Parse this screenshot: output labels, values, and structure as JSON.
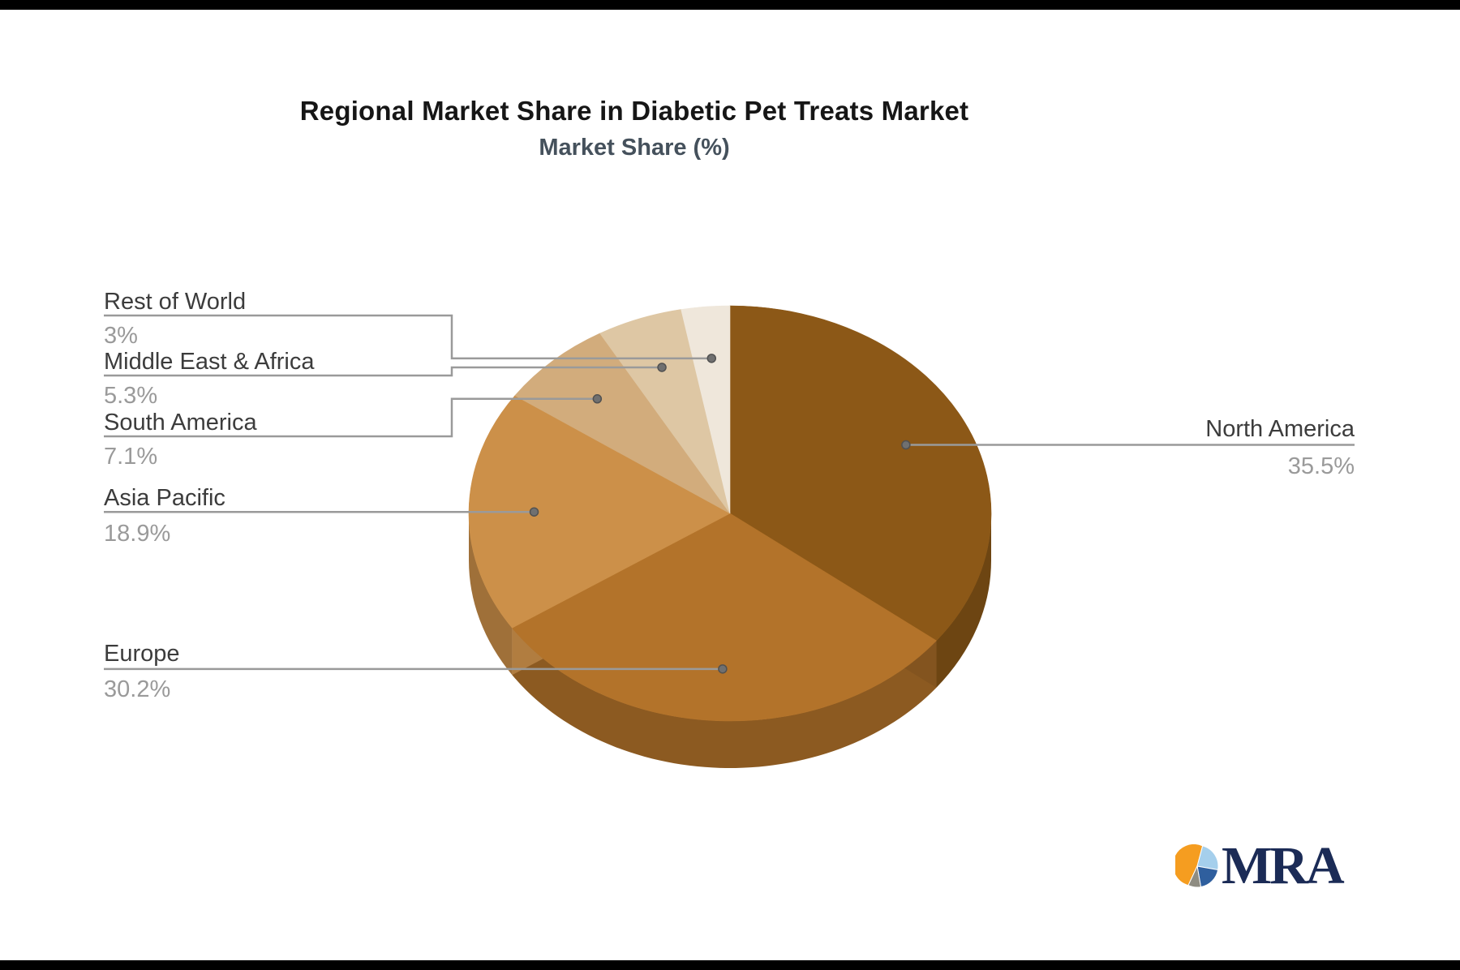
{
  "page": {
    "background": "#ffffff",
    "letterbox_color": "#000000"
  },
  "header": {
    "title": "Regional Market Share in Diabetic Pet Treats Market",
    "subtitle": "Market Share (%)"
  },
  "chart_data": {
    "type": "pie",
    "style": "3d",
    "unit": "%",
    "title": "Regional Market Share in Diabetic Pet Treats Market",
    "subtitle": "Market Share (%)",
    "start_angle": "top",
    "direction": "clockwise",
    "segments": [
      {
        "label": "North America",
        "value": 35.5,
        "display": "35.5%",
        "color": "#8C5817"
      },
      {
        "label": "Europe",
        "value": 30.2,
        "display": "30.2%",
        "color": "#B3732A"
      },
      {
        "label": "Asia Pacific",
        "value": 18.9,
        "display": "18.9%",
        "color": "#CC9049"
      },
      {
        "label": "South America",
        "value": 7.1,
        "display": "7.1%",
        "color": "#D2AC7C"
      },
      {
        "label": "Middle East & Africa",
        "value": 5.3,
        "display": "5.3%",
        "color": "#DEC7A4"
      },
      {
        "label": "Rest of World",
        "value": 3,
        "display": "3%",
        "color": "#EFE7DB"
      }
    ],
    "leader_line_color": "#9A9A9A",
    "dot_color": "#707070",
    "label_color": "#3C3C3C",
    "value_color": "#9A9A9A"
  },
  "logo": {
    "text": "MRA",
    "text_color": "#1B2B56",
    "icon_colors": {
      "orange": "#F59D20",
      "light_blue": "#A5CFEC",
      "dark_blue": "#2F5F9E",
      "gray": "#8E8C82"
    }
  }
}
